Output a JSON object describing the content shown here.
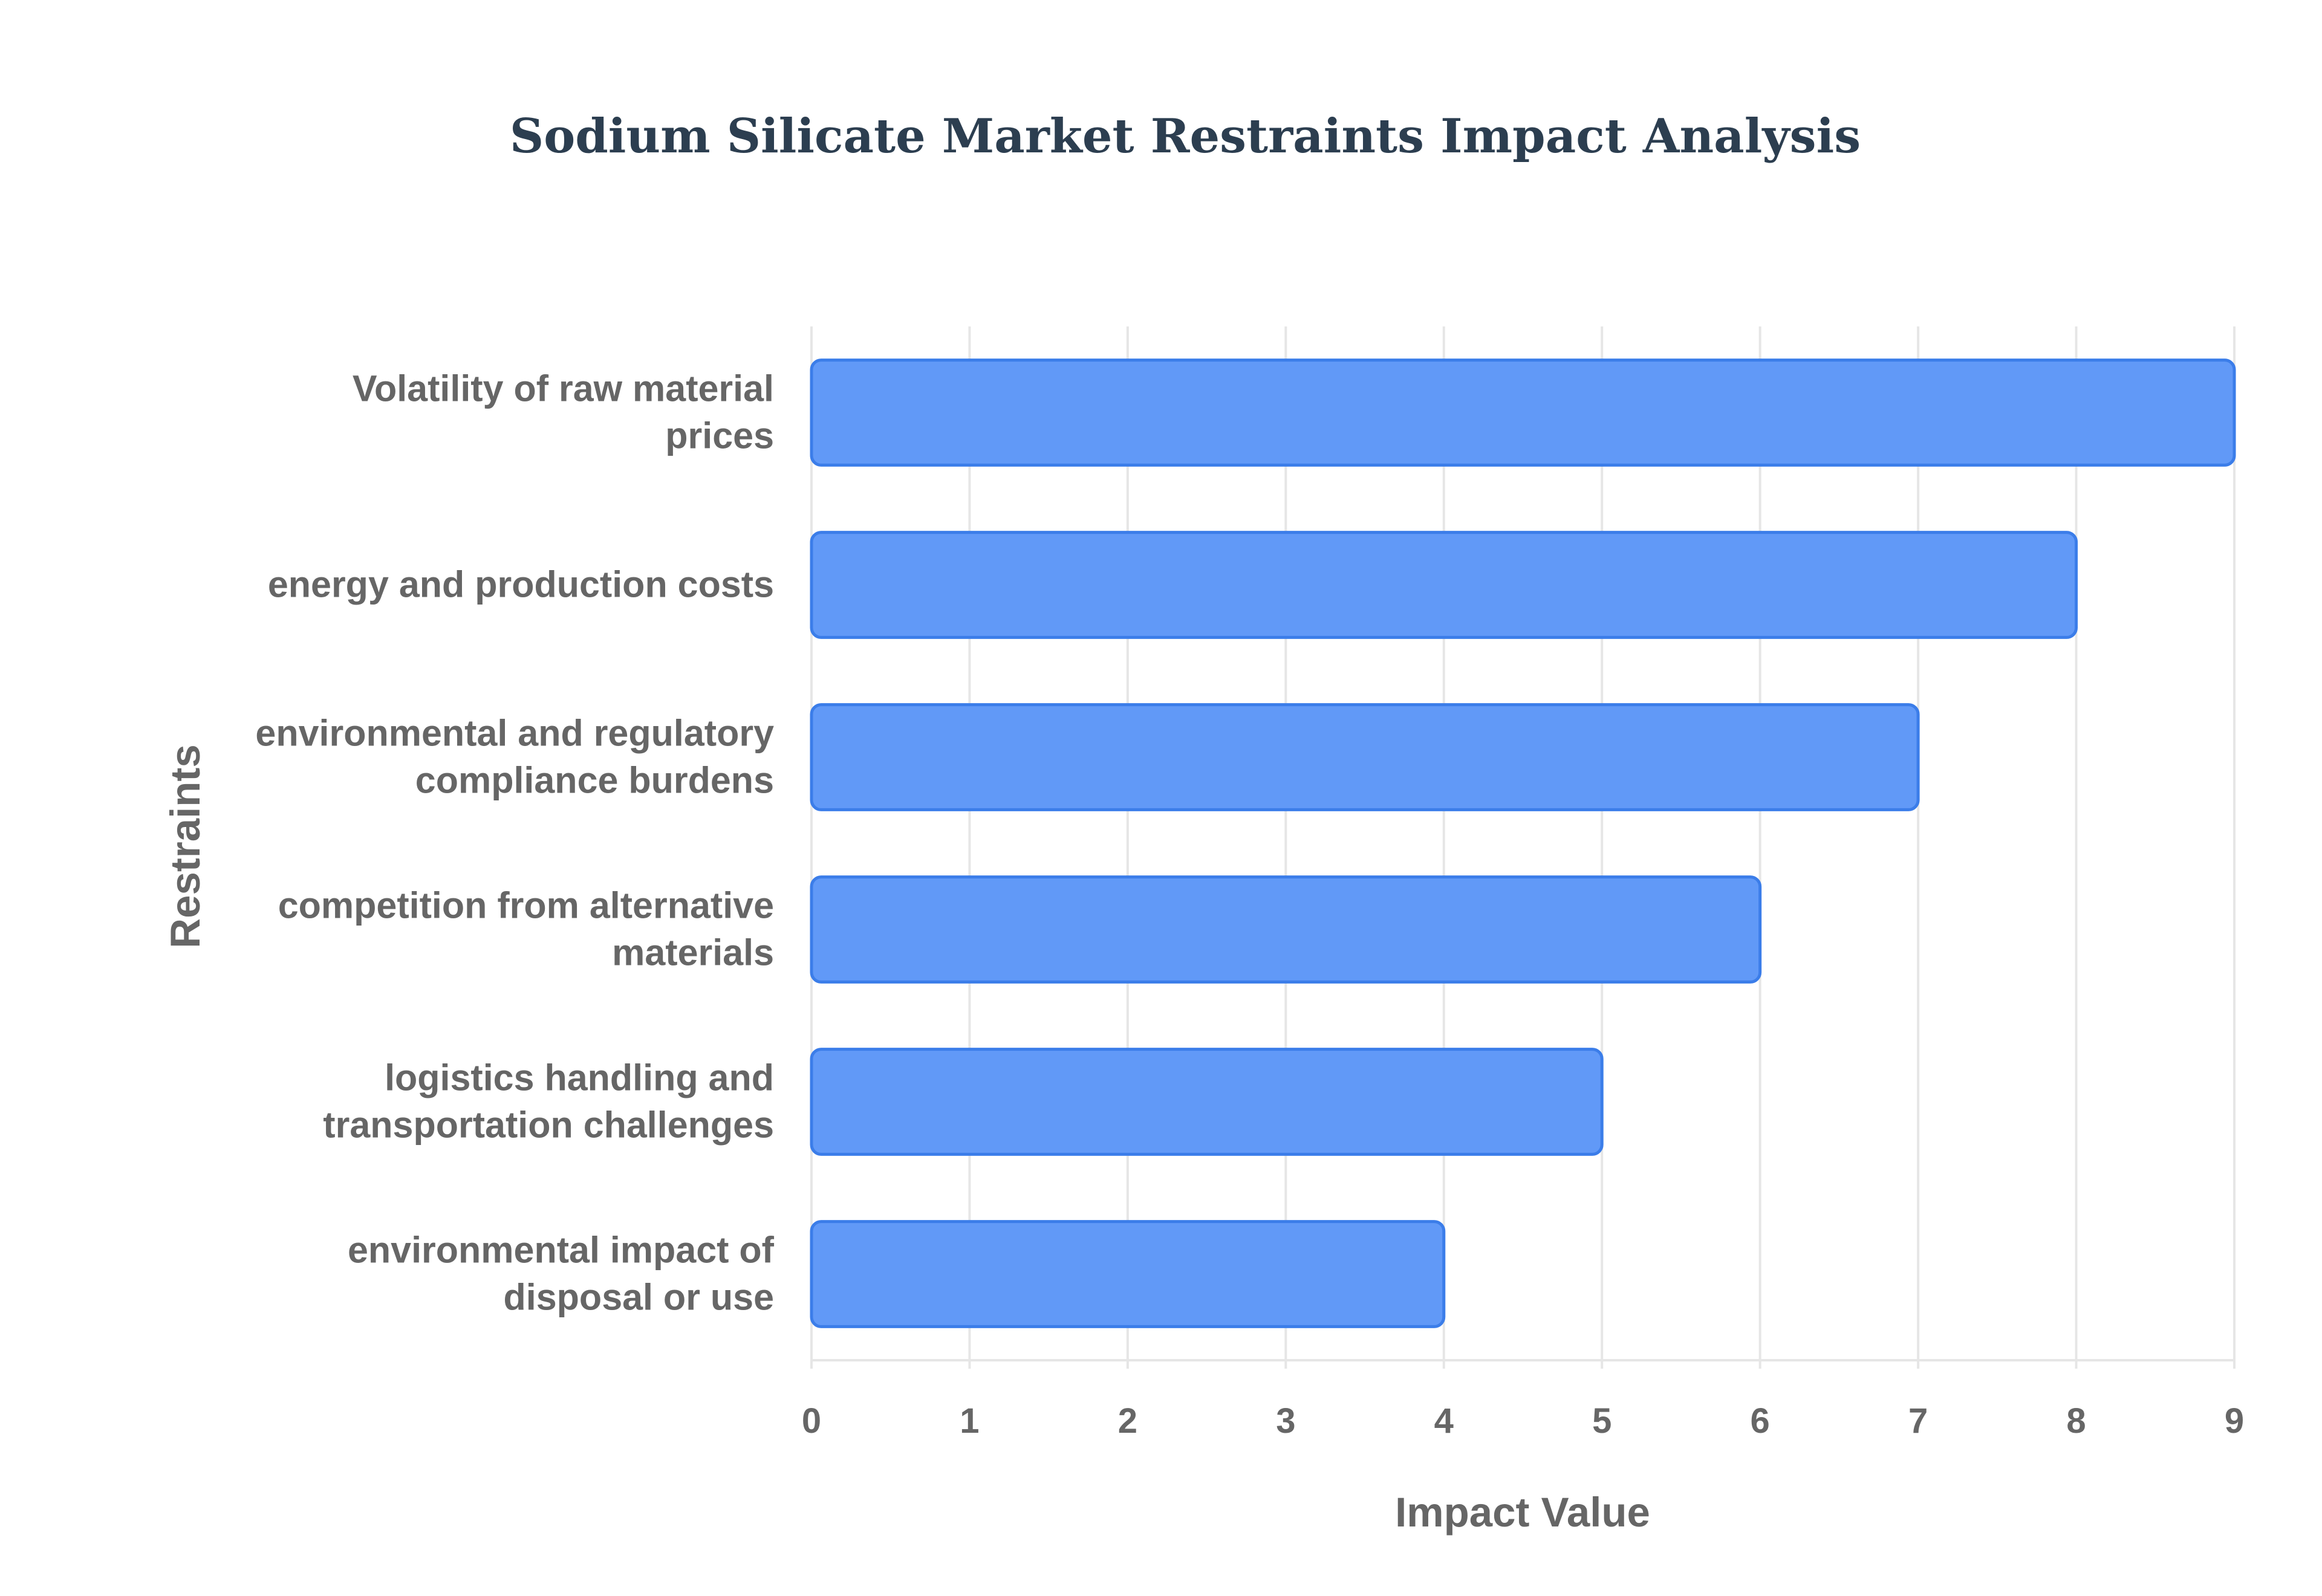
{
  "chart_data": {
    "type": "bar",
    "orientation": "horizontal",
    "title": "Sodium Silicate Market Restraints Impact Analysis",
    "xlabel": "Impact Value",
    "ylabel": "Restraints",
    "categories": [
      [
        "Volatility of raw material",
        "prices"
      ],
      [
        "energy and production costs"
      ],
      [
        "environmental and regulatory",
        "compliance burdens"
      ],
      [
        "competition from alternative",
        "materials"
      ],
      [
        "logistics handling and",
        "transportation challenges"
      ],
      [
        "environmental impact of",
        "disposal or use"
      ]
    ],
    "values": [
      9,
      8,
      7,
      6,
      5,
      4
    ],
    "xlim": [
      0,
      9
    ],
    "xticks": [
      "0",
      "1",
      "2",
      "3",
      "4",
      "5",
      "6",
      "7",
      "8",
      "9"
    ],
    "grid": true,
    "legend": "none",
    "colors": {
      "bar_fill": "#6199f7",
      "bar_stroke": "#3b7de9",
      "title": "#2c3e50",
      "text": "#666666",
      "grid": "#e6e6e6"
    }
  }
}
